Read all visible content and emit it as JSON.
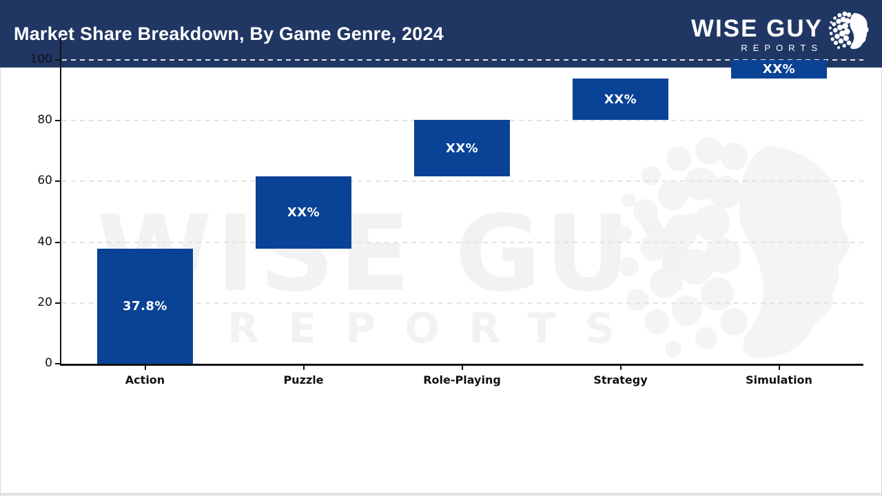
{
  "header": {
    "title": "Market Share Breakdown, By Game Genre, 2024",
    "logo": {
      "line1": "WISE GUY",
      "line2": "REPORTS"
    }
  },
  "watermark": {
    "line1": "WISE GUY",
    "line2": "REPORTS"
  },
  "colors": {
    "header_bg": "#203764",
    "bar": "#0a4296",
    "grid": "#e3e3e3",
    "axis": "#111111",
    "bar_label": "#ffffff",
    "watermark": "#f2f2f2"
  },
  "chart_data": {
    "type": "bar",
    "subtype": "waterfall",
    "title": "Market Share Breakdown, By Game Genre, 2024",
    "xlabel": "",
    "ylabel": "",
    "categories": [
      "Action",
      "Puzzle",
      "Role-Playing",
      "Strategy",
      "Simulation"
    ],
    "segments": [
      {
        "category": "Action",
        "start": 0,
        "end": 37.8,
        "value": 37.8,
        "label": "37.8%"
      },
      {
        "category": "Puzzle",
        "start": 37.8,
        "end": 61.6,
        "value": 23.8,
        "label": "XX%"
      },
      {
        "category": "Role-Playing",
        "start": 61.6,
        "end": 80.2,
        "value": 18.6,
        "label": "XX%"
      },
      {
        "category": "Strategy",
        "start": 80.2,
        "end": 93.9,
        "value": 13.7,
        "label": "XX%"
      },
      {
        "category": "Simulation",
        "start": 93.9,
        "end": 100,
        "value": 6.1,
        "label": "XX%"
      }
    ],
    "y_ticks": [
      0,
      20,
      40,
      60,
      80,
      100
    ],
    "ylim": [
      0,
      107
    ],
    "grid": "horizontal-dashed",
    "legend": "none",
    "bar_color": "#0a4296"
  }
}
